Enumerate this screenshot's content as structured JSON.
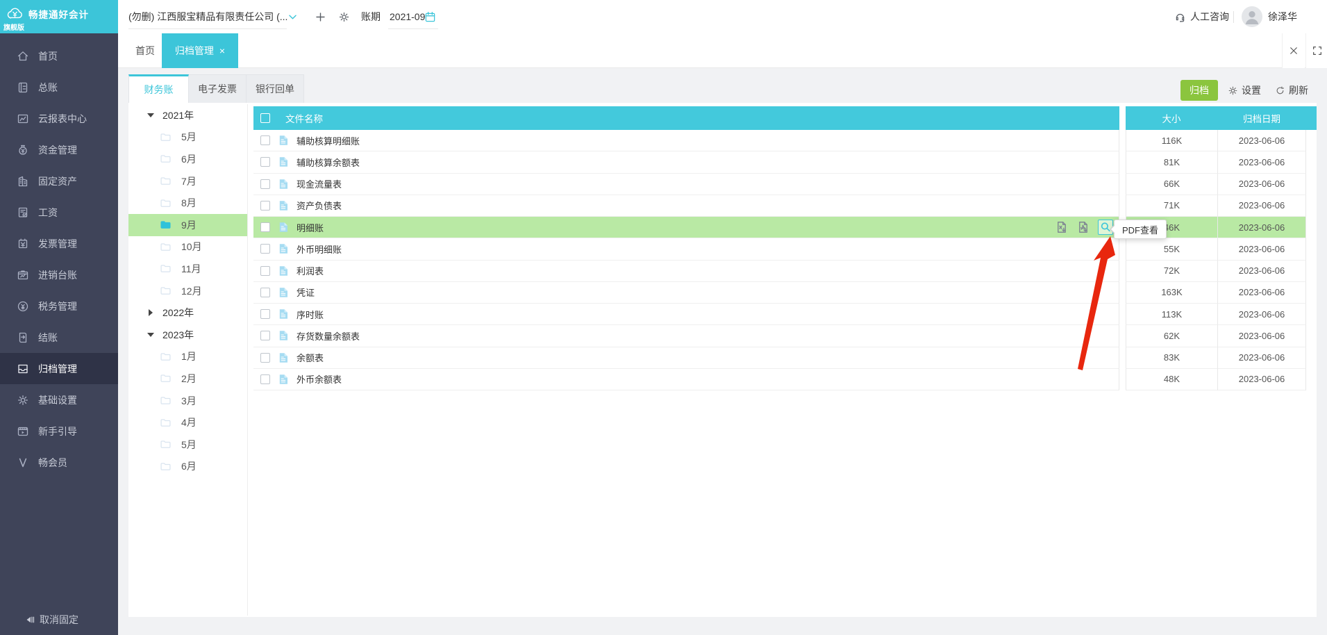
{
  "app": {
    "brand": "畅捷通好会计",
    "edition": "旗舰版"
  },
  "colors": {
    "accent_cyan": "#3cc5d9",
    "header_cyan": "#43c9dc",
    "row_green": "#b9e9a4",
    "btn_green": "#8bc53e",
    "sidebar_bg": "#3f4459",
    "sidebar_active_bg": "#2f3347",
    "arrow_red": "#e8270e"
  },
  "sidebar": {
    "items": [
      {
        "label": "首页",
        "icon": "home"
      },
      {
        "label": "总账",
        "icon": "general-ledger"
      },
      {
        "label": "云报表中心",
        "icon": "cloud-report"
      },
      {
        "label": "资金管理",
        "icon": "funds"
      },
      {
        "label": "固定资产",
        "icon": "fixed-assets"
      },
      {
        "label": "工资",
        "icon": "payroll"
      },
      {
        "label": "发票管理",
        "icon": "invoice"
      },
      {
        "label": "进销台账",
        "icon": "purchase-sales"
      },
      {
        "label": "税务管理",
        "icon": "tax"
      },
      {
        "label": "结账",
        "icon": "closing"
      },
      {
        "label": "归档管理",
        "icon": "archive",
        "active": true
      },
      {
        "label": "基础设置",
        "icon": "settings"
      },
      {
        "label": "新手引导",
        "icon": "guide"
      },
      {
        "label": "畅会员",
        "icon": "member"
      }
    ],
    "collapse_label": "取消固定"
  },
  "topbar": {
    "company": "(勿删) 江西服宝精品有限责任公司 (...",
    "period_label": "账期",
    "period_value": "2021-09",
    "support_label": "人工咨询",
    "username": "徐泽华"
  },
  "window_tabs": [
    {
      "label": "首页"
    },
    {
      "label": "归档管理",
      "active": true,
      "closable": true
    }
  ],
  "content": {
    "tabs": [
      {
        "label": "财务账",
        "active": true
      },
      {
        "label": "电子发票"
      },
      {
        "label": "银行回单"
      }
    ],
    "archive_button": "归档",
    "settings_button": "设置",
    "refresh_button": "刷新"
  },
  "tree": {
    "nodes": [
      {
        "label": "2021年",
        "expanded": true,
        "months": [
          "5月",
          "6月",
          "7月",
          "8月",
          "9月",
          "10月",
          "11月",
          "12月"
        ],
        "selected_month": "9月"
      },
      {
        "label": "2022年",
        "expanded": false,
        "months": []
      },
      {
        "label": "2023年",
        "expanded": true,
        "months": [
          "1月",
          "2月",
          "3月",
          "4月",
          "5月",
          "6月"
        ]
      }
    ]
  },
  "table": {
    "columns": [
      "文件名称",
      "大小",
      "归档日期"
    ],
    "rows": [
      {
        "name": "辅助核算明细账",
        "size": "116K",
        "date": "2023-06-06"
      },
      {
        "name": "辅助核算余额表",
        "size": "81K",
        "date": "2023-06-06"
      },
      {
        "name": "现金流量表",
        "size": "66K",
        "date": "2023-06-06"
      },
      {
        "name": "资产负债表",
        "size": "71K",
        "date": "2023-06-06"
      },
      {
        "name": "明细账",
        "size": "46K",
        "date": "2023-06-06",
        "highlighted": true,
        "actions": [
          "excel-download",
          "pdf-download",
          "pdf-view"
        ]
      },
      {
        "name": "外币明细账",
        "size": "55K",
        "date": "2023-06-06"
      },
      {
        "name": "利润表",
        "size": "72K",
        "date": "2023-06-06"
      },
      {
        "name": "凭证",
        "size": "163K",
        "date": "2023-06-06"
      },
      {
        "name": "序时账",
        "size": "113K",
        "date": "2023-06-06"
      },
      {
        "name": "存货数量余额表",
        "size": "62K",
        "date": "2023-06-06"
      },
      {
        "name": "余额表",
        "size": "83K",
        "date": "2023-06-06"
      },
      {
        "name": "外币余额表",
        "size": "48K",
        "date": "2023-06-06"
      }
    ]
  },
  "tooltip": {
    "text": "PDF查看"
  }
}
